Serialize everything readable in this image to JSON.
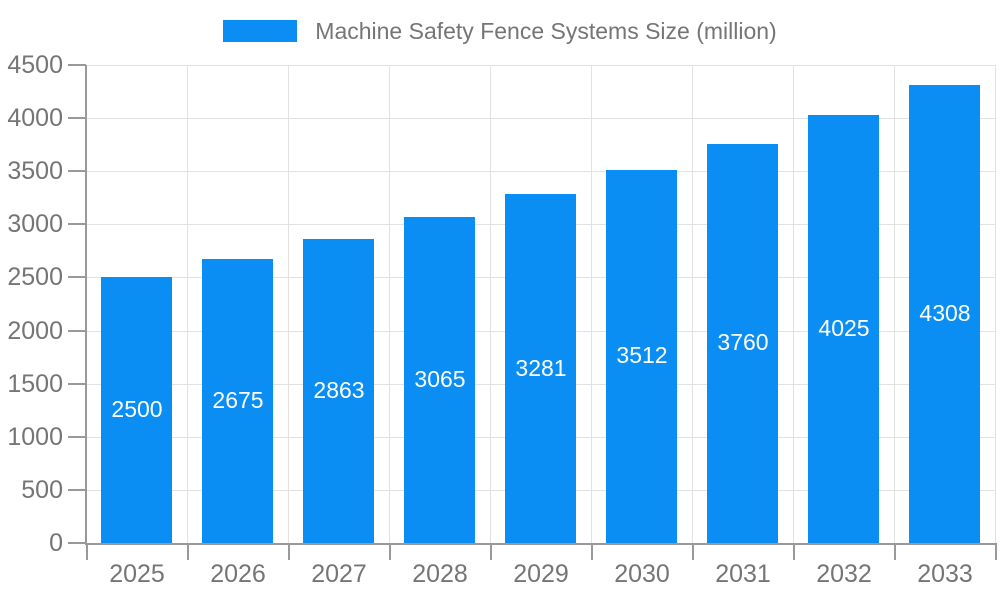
{
  "chart_data": {
    "type": "bar",
    "title": "Machine Safety Fence Systems Size (million)",
    "legend_entries": [
      "Machine Safety Fence Systems Size (million)"
    ],
    "legend_position": "top-center",
    "categories": [
      "2025",
      "2026",
      "2027",
      "2028",
      "2029",
      "2030",
      "2031",
      "2032",
      "2033"
    ],
    "values": [
      2500,
      2675,
      2863,
      3065,
      3281,
      3512,
      3760,
      4025,
      4308
    ],
    "xlabel": "",
    "ylabel": "",
    "ylim": [
      0,
      4500
    ],
    "ytick_step": 500,
    "y_ticks": [
      0,
      500,
      1000,
      1500,
      2000,
      2500,
      3000,
      3500,
      4000,
      4500
    ],
    "grid": true,
    "value_labels_shown": true,
    "colors": {
      "bar": "#0b8ef3",
      "grid_line": "#e2e2e2",
      "axis_line": "#999999",
      "tick_text": "#757575",
      "legend_text": "#757575",
      "value_label": "#ffffff",
      "background": "#ffffff"
    }
  }
}
